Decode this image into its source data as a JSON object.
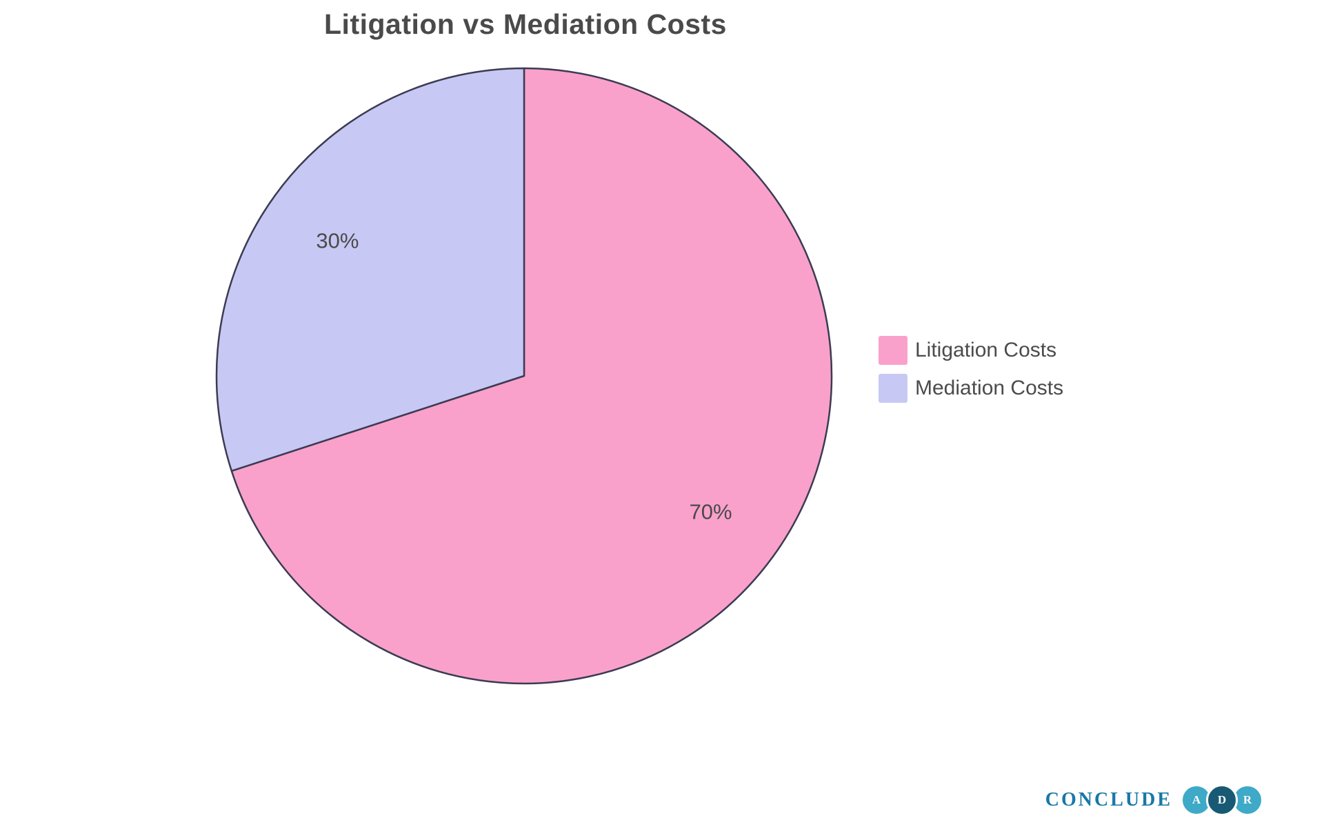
{
  "chart_data": {
    "type": "pie",
    "title": "Litigation vs Mediation Costs",
    "categories": [
      "Litigation Costs",
      "Mediation Costs"
    ],
    "values": [
      70,
      30
    ],
    "labels": [
      "70%",
      "30%"
    ],
    "colors": [
      "#F9A1CB",
      "#C8C8F4"
    ],
    "stroke_color": "#3B3B52",
    "stroke_width": 2.5,
    "start_angle_deg": 0,
    "direction": "clockwise",
    "legend_position": "right",
    "label_color": "#4a4a4a"
  },
  "legend": {
    "items": [
      {
        "label": "Litigation Costs",
        "color": "#F9A1CB"
      },
      {
        "label": "Mediation Costs",
        "color": "#C8C8F4"
      }
    ]
  },
  "branding": {
    "wordmark": "CONCLUDE",
    "wordmark_color": "#1878A8",
    "badges": [
      {
        "letter": "A",
        "color": "#3FA9C8"
      },
      {
        "letter": "D",
        "color": "#185A74"
      },
      {
        "letter": "R",
        "color": "#3FA9C8"
      }
    ]
  }
}
